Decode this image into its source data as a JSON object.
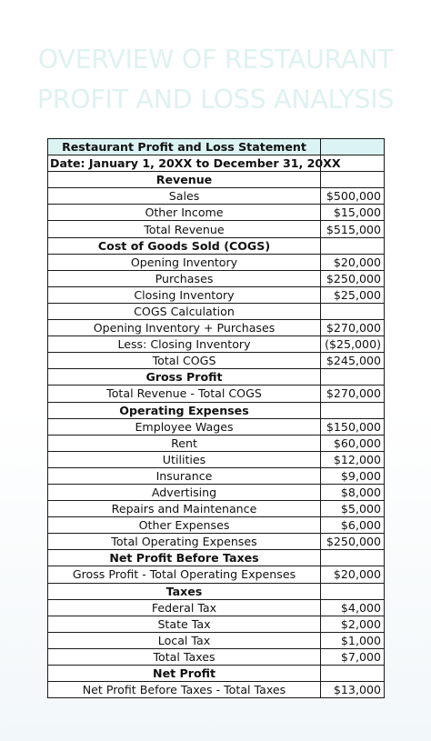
{
  "title": {
    "line1": "OVERVIEW OF RESTAURANT",
    "line2": "PROFIT AND LOSS ANALYSIS"
  },
  "statement": {
    "header": "Restaurant Profit and Loss Statement",
    "date_range": "Date: January 1, 20XX to December 31, 20XX",
    "rows": [
      {
        "label": "Revenue",
        "value": "",
        "type": "section"
      },
      {
        "label": "Sales",
        "value": "$500,000",
        "type": "item"
      },
      {
        "label": "Other Income",
        "value": "$15,000",
        "type": "item"
      },
      {
        "label": "Total Revenue",
        "value": "$515,000",
        "type": "item"
      },
      {
        "label": "Cost of Goods Sold (COGS)",
        "value": "",
        "type": "section"
      },
      {
        "label": "Opening Inventory",
        "value": "$20,000",
        "type": "item"
      },
      {
        "label": "Purchases",
        "value": "$250,000",
        "type": "item"
      },
      {
        "label": "Closing Inventory",
        "value": "$25,000",
        "type": "item"
      },
      {
        "label": "COGS Calculation",
        "value": "",
        "type": "item"
      },
      {
        "label": "Opening Inventory + Purchases",
        "value": "$270,000",
        "type": "item"
      },
      {
        "label": "Less: Closing Inventory",
        "value": "($25,000)",
        "type": "item"
      },
      {
        "label": "Total COGS",
        "value": "$245,000",
        "type": "item"
      },
      {
        "label": "Gross Profit",
        "value": "",
        "type": "section"
      },
      {
        "label": "Total Revenue - Total COGS",
        "value": "$270,000",
        "type": "item"
      },
      {
        "label": "Operating Expenses",
        "value": "",
        "type": "section"
      },
      {
        "label": "Employee Wages",
        "value": "$150,000",
        "type": "item"
      },
      {
        "label": "Rent",
        "value": "$60,000",
        "type": "item"
      },
      {
        "label": "Utilities",
        "value": "$12,000",
        "type": "item"
      },
      {
        "label": "Insurance",
        "value": "$9,000",
        "type": "item"
      },
      {
        "label": "Advertising",
        "value": "$8,000",
        "type": "item"
      },
      {
        "label": "Repairs and Maintenance",
        "value": "$5,000",
        "type": "item"
      },
      {
        "label": "Other Expenses",
        "value": "$6,000",
        "type": "item"
      },
      {
        "label": "Total Operating Expenses",
        "value": "$250,000",
        "type": "item"
      },
      {
        "label": "Net Profit Before Taxes",
        "value": "",
        "type": "section"
      },
      {
        "label": "Gross Profit - Total Operating Expenses",
        "value": "$20,000",
        "type": "item"
      },
      {
        "label": "Taxes",
        "value": "",
        "type": "section"
      },
      {
        "label": "Federal Tax",
        "value": "$4,000",
        "type": "item"
      },
      {
        "label": "State Tax",
        "value": "$2,000",
        "type": "item"
      },
      {
        "label": "Local Tax",
        "value": "$1,000",
        "type": "item"
      },
      {
        "label": "Total Taxes",
        "value": "$7,000",
        "type": "item"
      },
      {
        "label": "Net Profit",
        "value": "",
        "type": "section"
      },
      {
        "label": "Net Profit Before Taxes - Total Taxes",
        "value": "$13,000",
        "type": "item"
      }
    ]
  }
}
